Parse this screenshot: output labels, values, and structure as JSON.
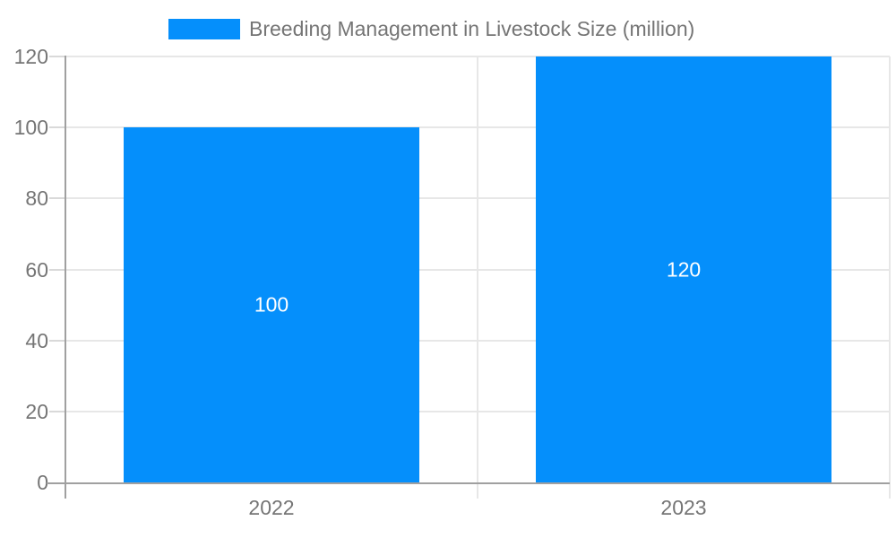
{
  "chart_data": {
    "type": "bar",
    "series_name": "Breeding Management in Livestock Size (million)",
    "categories": [
      "2022",
      "2023"
    ],
    "values": [
      100,
      120
    ],
    "data_labels": [
      "100",
      "120"
    ],
    "yticks": [
      0,
      20,
      40,
      60,
      80,
      100,
      120
    ],
    "ylim": [
      0,
      120
    ],
    "xlabel": "",
    "ylabel": "",
    "legend_position": "top-center",
    "grid": "horizontal and vertical category boundaries",
    "colors": {
      "bar": "#058ffb",
      "axis_text": "#757575",
      "legend_text": "#757575",
      "data_label_text": "#ffffff",
      "gridline": "#e7e7e7",
      "axis_line": "#a0a0a0",
      "tick": "#d9d9d9",
      "background": "#ffffff"
    }
  }
}
